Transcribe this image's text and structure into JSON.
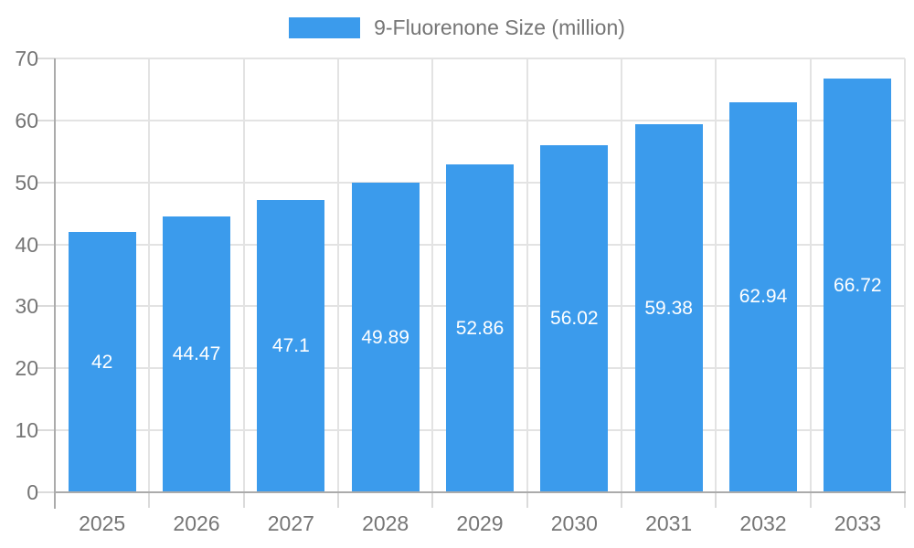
{
  "chart_data": {
    "type": "bar",
    "title": "",
    "legend": {
      "label": "9-Fluorenone Size (million)",
      "position": "top-center"
    },
    "categories": [
      "2025",
      "2026",
      "2027",
      "2028",
      "2029",
      "2030",
      "2031",
      "2032",
      "2033"
    ],
    "series": [
      {
        "name": "9-Fluorenone Size (million)",
        "values": [
          42,
          44.47,
          47.1,
          49.89,
          52.86,
          56.02,
          59.38,
          62.94,
          66.72
        ],
        "labels": [
          "42",
          "44.47",
          "47.1",
          "49.89",
          "52.86",
          "56.02",
          "59.38",
          "62.94",
          "66.72"
        ]
      }
    ],
    "xlabel": "",
    "ylabel": "",
    "ylim": [
      0,
      70
    ],
    "yticks": [
      0,
      10,
      20,
      30,
      40,
      50,
      60,
      70
    ],
    "grid": "both",
    "bar_label_position": "inside-center",
    "colors": {
      "bar": "#3B9BEC",
      "bar_label": "#FFFFFF",
      "grid": "#E3E3E3",
      "tick": "#DBDBDB",
      "axis": "#ABABAB",
      "text": "#757575",
      "background": "#FFFFFF"
    }
  }
}
